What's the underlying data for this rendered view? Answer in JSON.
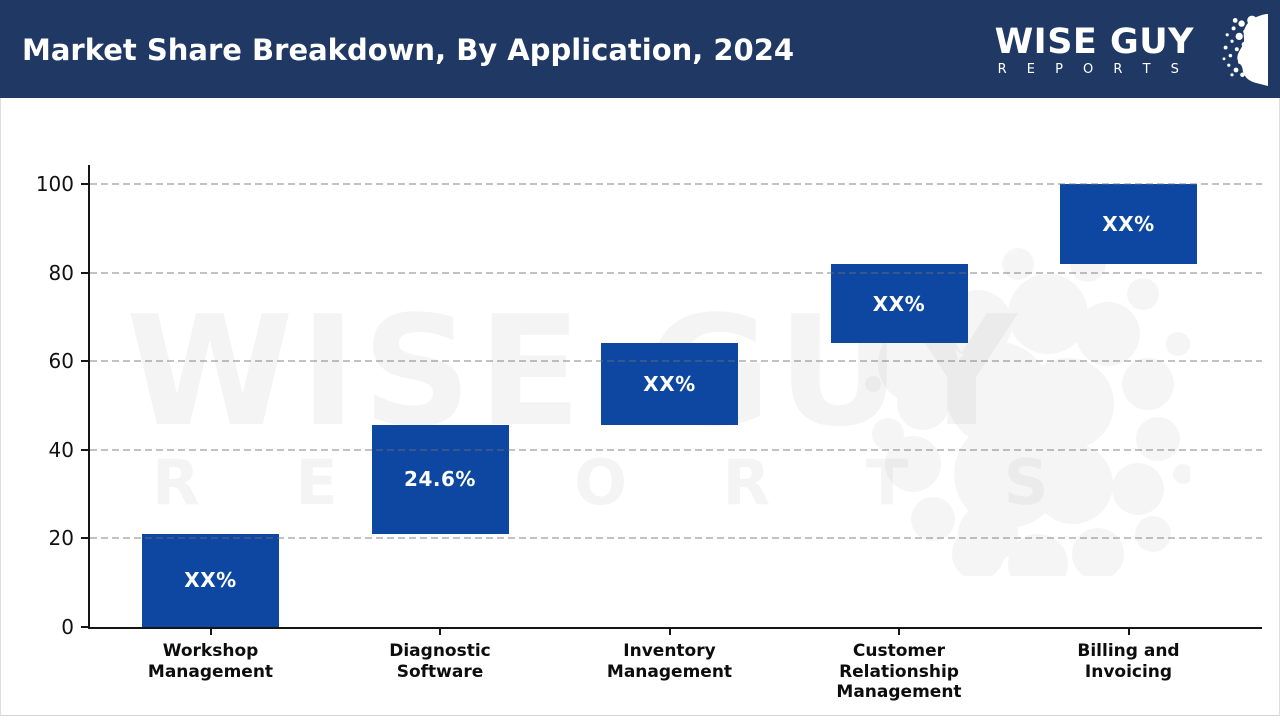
{
  "header": {
    "title": "Market Share Breakdown, By Application, 2024",
    "background_color": "#1f3864",
    "logo": {
      "primary": "WISE GUY",
      "secondary": "R E P O R T S"
    }
  },
  "watermark": {
    "line1": "WISE GUY",
    "line2": "R E P O R T S"
  },
  "chart_data": {
    "type": "bar",
    "variant": "waterfall-floating-segments",
    "title": "Market Share Breakdown, By Application, 2024",
    "categories": [
      "Workshop Management",
      "Diagnostic Software",
      "Inventory Management",
      "Customer Relationship Management",
      "Billing and Invoicing"
    ],
    "category_label_lines": [
      [
        "Workshop",
        "Management"
      ],
      [
        "Diagnostic",
        "Software"
      ],
      [
        "Inventory",
        "Management"
      ],
      [
        "Customer",
        "Relationship",
        "Management"
      ],
      [
        "Billing and",
        "Invoicing"
      ]
    ],
    "series": [
      {
        "name": "Market share (%)",
        "segment_start": [
          0,
          21,
          45.6,
          64,
          82
        ],
        "segment_end": [
          21,
          45.6,
          64,
          82,
          100
        ],
        "bar_labels": [
          "XX%",
          "24.6%",
          "XX%",
          "XX%",
          "XX%"
        ]
      }
    ],
    "xlabel": "",
    "ylabel": "",
    "yticks": [
      0,
      20,
      40,
      60,
      80,
      100
    ],
    "ylim": [
      0,
      104.5
    ],
    "grid": "horizontal-dashed",
    "legend": "none",
    "bar_color": "#0d47a1",
    "bar_label_color": "#ffffff",
    "axis_color": "#151515"
  }
}
